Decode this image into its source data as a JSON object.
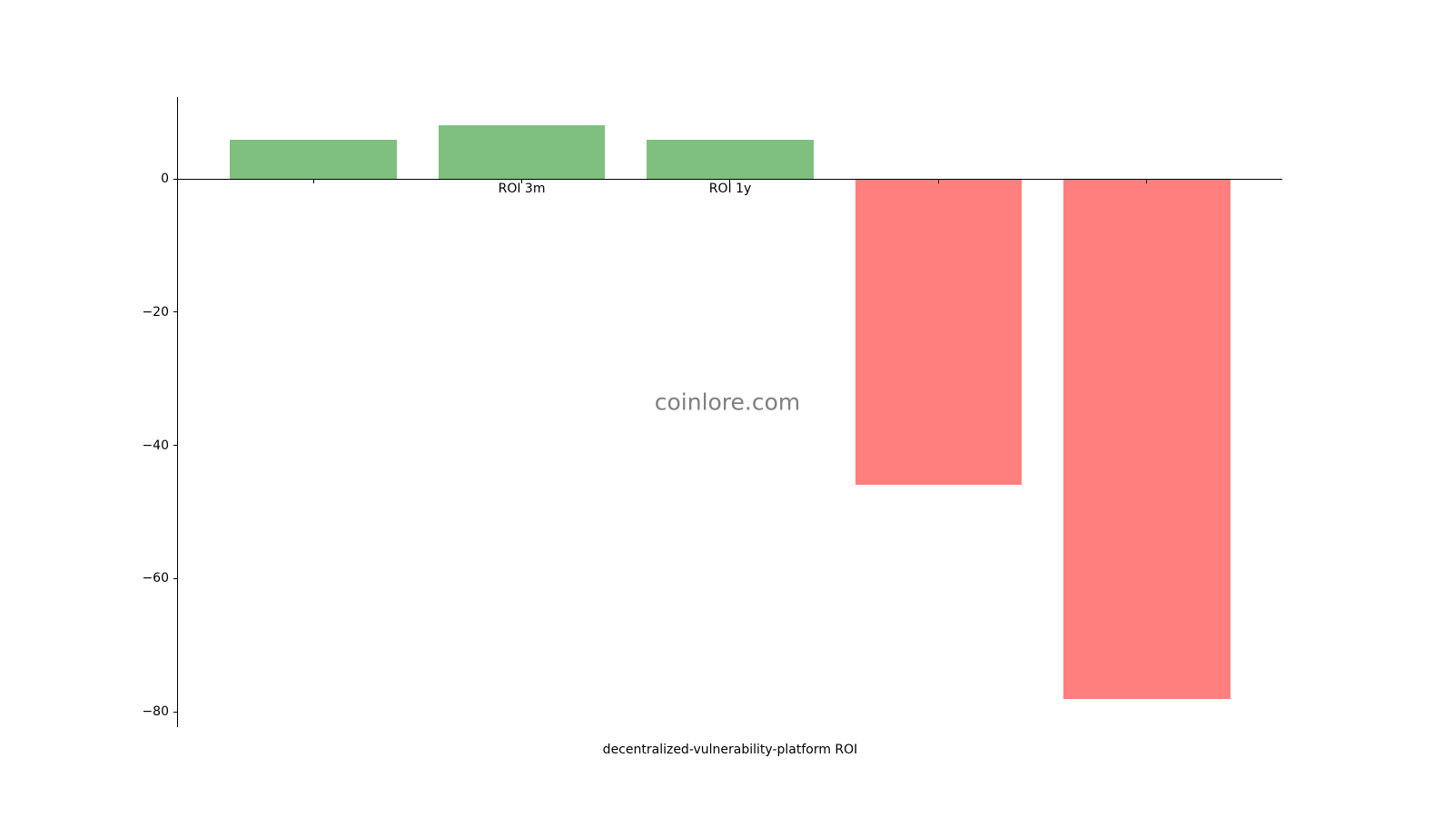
{
  "chart_data": {
    "type": "bar",
    "categories": [
      "",
      "ROI 3m",
      "ROI 1y",
      "",
      ""
    ],
    "values": [
      5.9,
      8.0,
      5.9,
      -45.8,
      -77.9
    ],
    "title": "",
    "xlabel": "decentralized-vulnerability-platform ROI",
    "ylabel": "",
    "yticks": [
      0,
      -20,
      -40,
      -60,
      -80
    ],
    "ylim": [
      -82.3,
      12.3
    ],
    "grid": false,
    "legend": false,
    "positive_color": "#7fbf7f",
    "negative_color": "#ff7f7f",
    "axis_color": "#000000",
    "tick_label_color": "#000000"
  },
  "watermark": {
    "text": "coinlore.com",
    "color": "#7f7f7f"
  }
}
